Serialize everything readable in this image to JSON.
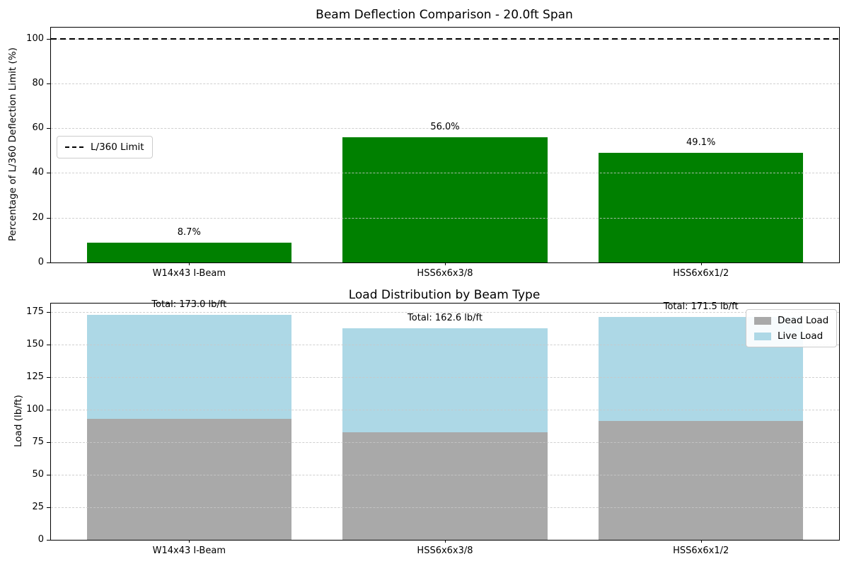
{
  "figure": {
    "background": "#ffffff",
    "grid_color": "#d3d3d3",
    "reference_line_color": "#000000"
  },
  "chart_data": [
    {
      "type": "bar",
      "title": "Beam Deflection Comparison - 20.0ft Span",
      "ylabel": "Percentage of L/360 Deflection Limit (%)",
      "xlabel": "",
      "categories": [
        "W14x43 I-Beam",
        "HSS6x6x3/8",
        "HSS6x6x1/2"
      ],
      "values": [
        8.7,
        56.0,
        49.1
      ],
      "bar_labels": [
        "8.7%",
        "56.0%",
        "49.1%"
      ],
      "bar_color": "#008000",
      "ylim": [
        0,
        104.9
      ],
      "yticks": [
        0,
        20,
        40,
        60,
        80,
        100
      ],
      "grid": "horizontal-dashed",
      "reference_line": {
        "value": 100,
        "label": "L/360 Limit",
        "style": "dashed",
        "color": "#000000"
      },
      "legend": {
        "location": "center-left",
        "entries": [
          {
            "label": "L/360 Limit",
            "marker": "dashed-black-line"
          }
        ]
      }
    },
    {
      "type": "stacked-bar",
      "title": "Load Distribution by Beam Type",
      "ylabel": "Load (lb/ft)",
      "xlabel": "",
      "categories": [
        "W14x43 I-Beam",
        "HSS6x6x3/8",
        "HSS6x6x1/2"
      ],
      "series": [
        {
          "name": "Dead Load",
          "color": "#a9a9a9",
          "values": [
            93.0,
            82.6,
            91.5
          ]
        },
        {
          "name": "Live Load",
          "color": "#add8e6",
          "values": [
            80.0,
            80.0,
            80.0
          ]
        }
      ],
      "totals": [
        173.0,
        162.6,
        171.5
      ],
      "total_labels": [
        "Total: 173.0 lb/ft",
        "Total: 162.6 lb/ft",
        "Total: 171.5 lb/ft"
      ],
      "ylim": [
        0,
        181.7
      ],
      "yticks": [
        0,
        25,
        50,
        75,
        100,
        125,
        150,
        175
      ],
      "grid": "horizontal-dashed",
      "legend": {
        "location": "upper-right",
        "entries": [
          {
            "label": "Dead Load",
            "color": "#a9a9a9"
          },
          {
            "label": "Live Load",
            "color": "#add8e6"
          }
        ]
      }
    }
  ]
}
